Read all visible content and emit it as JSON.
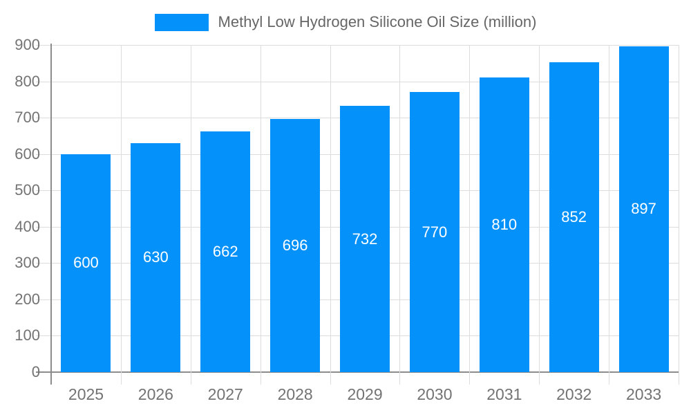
{
  "chart_data": {
    "type": "bar",
    "title": "Methyl Low Hydrogen Silicone Oil Size (million)",
    "series": [
      {
        "name": "Methyl Low Hydrogen Silicone Oil Size (million)",
        "values": [
          600,
          630,
          662,
          696,
          732,
          770,
          810,
          852,
          897
        ]
      }
    ],
    "categories": [
      "2025",
      "2026",
      "2027",
      "2028",
      "2029",
      "2030",
      "2031",
      "2032",
      "2033"
    ],
    "xlabel": "",
    "ylabel": "",
    "ylim": [
      0,
      900
    ],
    "ytick_step": 100,
    "ytick_labels": [
      "0",
      "100",
      "200",
      "300",
      "400",
      "500",
      "600",
      "700",
      "800",
      "900"
    ],
    "grid": true,
    "legend_position": "top",
    "value_labels_shown": true,
    "colors": {
      "bar": "#0591fa",
      "value_label": "#ffffff",
      "axis": "#8c8c8c",
      "gridline": "#dcdcdc",
      "tick_label": "#737373",
      "legend_text": "#666666",
      "background": "#ffffff"
    }
  }
}
